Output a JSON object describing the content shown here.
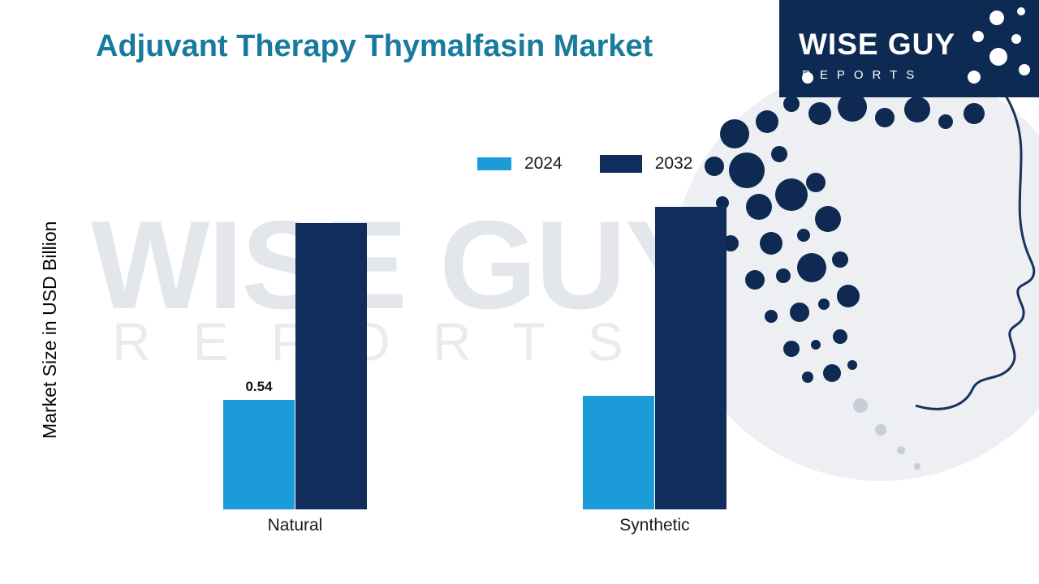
{
  "page": {
    "title": "Adjuvant Therapy Thymalfasin Market",
    "title_color": "#187a9c"
  },
  "logo": {
    "line1": "WISE GUY",
    "line2": "REPORTS",
    "bg_color": "#0d2a52"
  },
  "watermark": {
    "line1": "WISE GUY",
    "line2": "REPORTS"
  },
  "chart_data": {
    "type": "bar",
    "title": "Adjuvant Therapy Thymalfasin Market",
    "xlabel": "",
    "ylabel": "Market Size in USD Billion",
    "categories": [
      "Natural",
      "Synthetic"
    ],
    "series": [
      {
        "name": "2024",
        "color": "#1b9cd9",
        "values": [
          0.54,
          0.56
        ]
      },
      {
        "name": "2032",
        "color": "#102d5c",
        "values": [
          1.41,
          1.49
        ]
      }
    ],
    "data_labels": [
      {
        "category": "Natural",
        "series": "2024",
        "text": "0.54"
      }
    ],
    "ylim": [
      0,
      1.6
    ],
    "grid": false,
    "legend_position": "top"
  }
}
